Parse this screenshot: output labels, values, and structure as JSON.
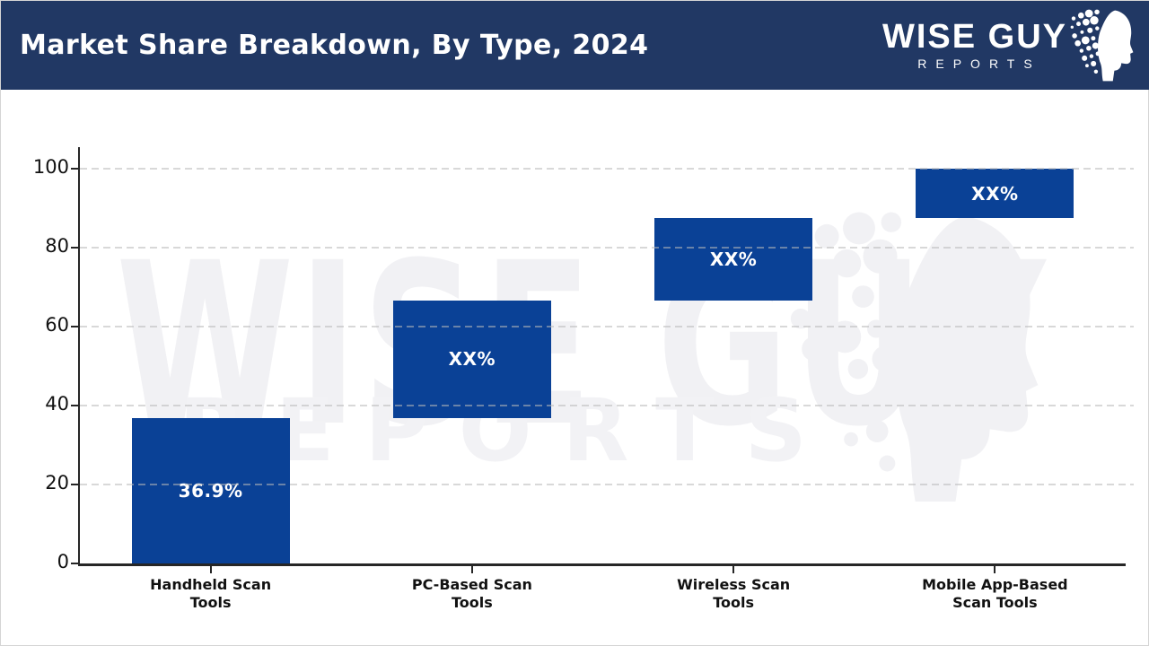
{
  "header": {
    "title": "Market Share Breakdown, By Type, 2024",
    "brand": {
      "name": "WISE GUY",
      "sub": "REPORTS"
    }
  },
  "watermark": {
    "line1": "WISE GUY",
    "line2": "REPORTS"
  },
  "chart_data": {
    "type": "bar",
    "subtype": "waterfall-floating-bars",
    "title": "Market Share Breakdown, By Type, 2024",
    "categories": [
      "Handheld Scan\nTools",
      "PC-Based Scan\nTools",
      "Wireless Scan\nTools",
      "Mobile App-Based\nScan Tools"
    ],
    "segments": [
      {
        "category": "Handheld Scan Tools",
        "start": 0,
        "end": 36.9,
        "label": "36.9%"
      },
      {
        "category": "PC-Based Scan Tools",
        "start": 36.9,
        "end": 66.6,
        "label": "XX%"
      },
      {
        "category": "Wireless Scan Tools",
        "start": 66.6,
        "end": 87.4,
        "label": "XX%"
      },
      {
        "category": "Mobile App-Based Scan Tools",
        "start": 87.4,
        "end": 100,
        "label": "XX%"
      }
    ],
    "ylim": [
      0,
      100
    ],
    "yticks": [
      0,
      20,
      40,
      60,
      80,
      100
    ],
    "xlabel": "",
    "ylabel": "",
    "grid": "horizontal-dashed",
    "legend": false,
    "colors": {
      "bar": "#0a4196",
      "bar_label": "#ffffff",
      "header_bg": "#213864",
      "axis": "#262626",
      "tick_text": "#111111",
      "grid": "#dddddd",
      "watermark": "#f1f1f4"
    }
  }
}
